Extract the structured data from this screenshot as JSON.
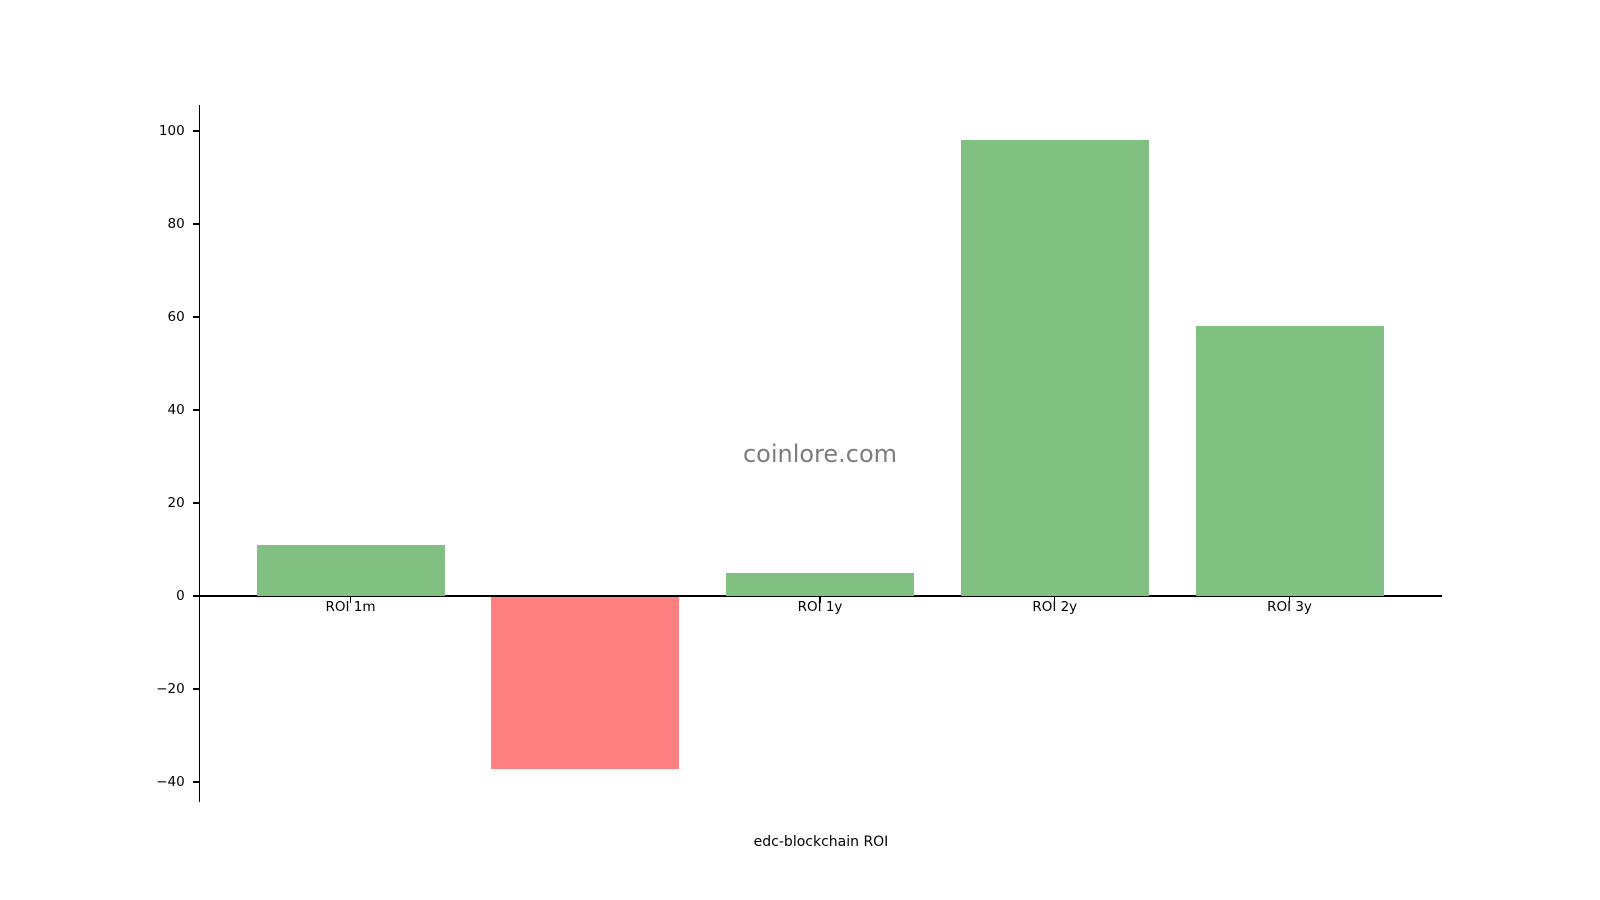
{
  "watermark_text": "coinlore.com",
  "chart_data": {
    "type": "bar",
    "title": "edc-blockchain ROI",
    "watermark": "coinlore.com",
    "categories": [
      "ROI 1m",
      "",
      "ROI 1y",
      "ROI 2y",
      "ROI 3y"
    ],
    "values": [
      11,
      -37,
      5,
      98,
      58
    ],
    "xlabel": "edc-blockchain ROI",
    "ylabel": "",
    "ylim": [
      -44,
      105
    ],
    "yticks": [
      {
        "label": "100",
        "value": 100
      },
      {
        "label": "80",
        "value": 80
      },
      {
        "label": "60",
        "value": 60
      },
      {
        "label": "40",
        "value": 40
      },
      {
        "label": "20",
        "value": 20
      },
      {
        "label": "0",
        "value": 0
      },
      {
        "label": "−20",
        "value": -20
      },
      {
        "label": "−40",
        "value": -40
      }
    ],
    "grid": false,
    "legend_position": "none",
    "colors": {
      "positive_bar": "#80c080",
      "negative_bar": "#ff8080",
      "axis": "#000000",
      "watermark": "#7d7d7d",
      "background": "#ffffff"
    }
  }
}
